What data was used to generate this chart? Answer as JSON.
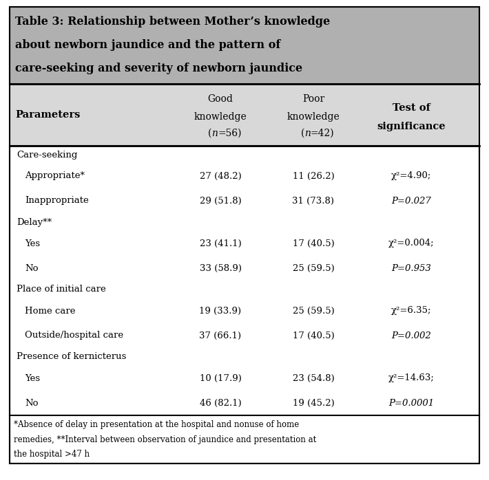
{
  "title_lines": [
    "Table 3: Relationship between Mother’s knowledge",
    "about newborn jaundice and the pattern of",
    "care-seeking and severity of newborn jaundice"
  ],
  "rows": [
    {
      "param": "Care-seeking",
      "val1": "",
      "val2": "",
      "stat": "",
      "is_category": true
    },
    {
      "param": "Appropriate*",
      "val1": "27 (48.2)",
      "val2": "11 (26.2)",
      "stat": "χ²=4.90;",
      "stat2": "P=0.027",
      "is_category": false
    },
    {
      "param": "Inappropriate",
      "val1": "29 (51.8)",
      "val2": "31 (73.8)",
      "stat": "",
      "stat2": "",
      "is_category": false
    },
    {
      "param": "Delay**",
      "val1": "",
      "val2": "",
      "stat": "",
      "is_category": true
    },
    {
      "param": "Yes",
      "val1": "23 (41.1)",
      "val2": "17 (40.5)",
      "stat": "χ²=0.004;",
      "stat2": "P=0.953",
      "is_category": false
    },
    {
      "param": "No",
      "val1": "33 (58.9)",
      "val2": "25 (59.5)",
      "stat": "",
      "stat2": "",
      "is_category": false
    },
    {
      "param": "Place of initial care",
      "val1": "",
      "val2": "",
      "stat": "",
      "is_category": true
    },
    {
      "param": "Home care",
      "val1": "19 (33.9)",
      "val2": "25 (59.5)",
      "stat": "χ²=6.35;",
      "stat2": "P=0.002",
      "is_category": false
    },
    {
      "param": "Outside/hospital care",
      "val1": "37 (66.1)",
      "val2": "17 (40.5)",
      "stat": "",
      "stat2": "",
      "is_category": false
    },
    {
      "param": "Presence of kernicterus",
      "val1": "",
      "val2": "",
      "stat": "",
      "is_category": true
    },
    {
      "param": "Yes",
      "val1": "10 (17.9)",
      "val2": "23 (54.8)",
      "stat": "χ²=14.63;",
      "stat2": "P=0.0001",
      "is_category": false
    },
    {
      "param": "No",
      "val1": "46 (82.1)",
      "val2": "19 (45.2)",
      "stat": "",
      "stat2": "",
      "is_category": false
    }
  ],
  "footnote_lines": [
    "*Absence of delay in presentation at the hospital and nonuse of home",
    "remedies, **Interval between observation of jaundice and presentation at",
    "the hospital >47 h"
  ],
  "title_bg": "#b0b0b0",
  "header_bg": "#d8d8d8",
  "body_bg": "#ffffff",
  "border_color": "#000000"
}
